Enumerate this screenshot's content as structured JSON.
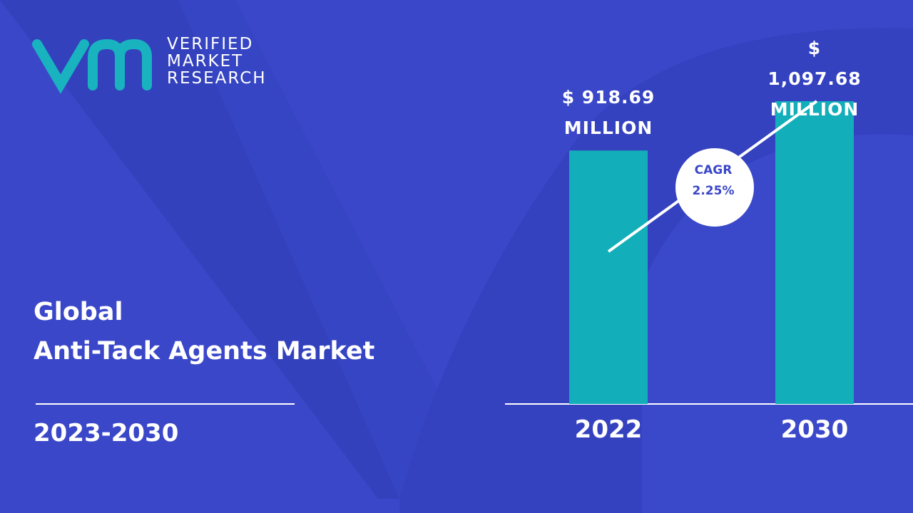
{
  "brand": {
    "lines": [
      "VERIFIED",
      "MARKET",
      "RESEARCH"
    ]
  },
  "chart_data": {
    "type": "bar",
    "title": "Global",
    "subtitle": "Anti-Tack Agents Market",
    "period": "2023-2030",
    "categories": [
      "2022",
      "2030"
    ],
    "values": [
      918.69,
      1097.68
    ],
    "value_labels": [
      "$ 918.69 MILLION",
      "$ 1,097.68 MILLION"
    ],
    "color": "#12aeb9",
    "annotation": {
      "label": "CAGR",
      "value": "2.25%"
    }
  }
}
